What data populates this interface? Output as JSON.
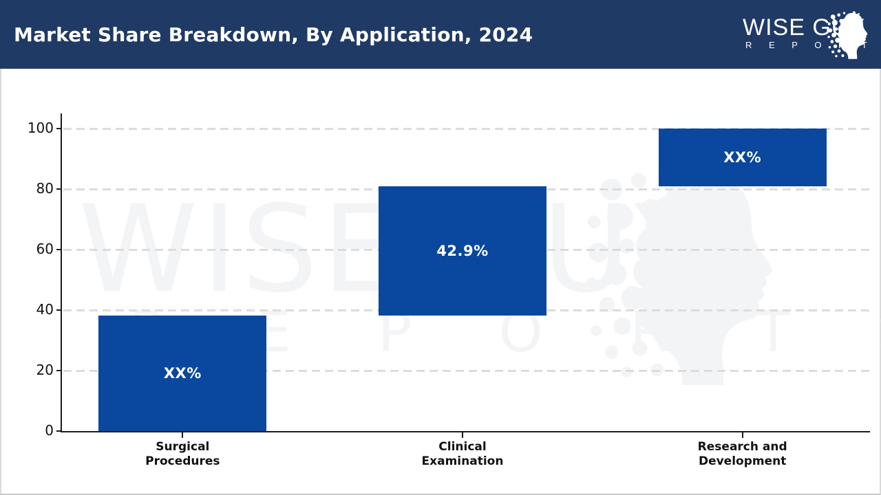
{
  "header": {
    "title": "Market Share Breakdown, By Application, 2024",
    "logo": {
      "line1": "WISE GUY",
      "line2": "R E P O R T S",
      "head_icon": "dotted-face-profile"
    },
    "bg_color": "#203a66"
  },
  "watermark": {
    "line1": "WISE GUY",
    "line2": "R E P O R T S",
    "head_icon": "dotted-face-profile",
    "color": "#f3f4f6"
  },
  "chart_data": {
    "type": "bar",
    "subtype": "waterfall-floating-segments",
    "title": "Market Share Breakdown, By Application, 2024",
    "categories": [
      "Surgical Procedures",
      "Clinical Examination",
      "Research and Development"
    ],
    "category_lines": [
      [
        "Surgical",
        "Procedures"
      ],
      [
        "Clinical",
        "Examination"
      ],
      [
        "Research and",
        "Development"
      ]
    ],
    "bars": [
      {
        "start": 0,
        "end": 38.1,
        "value_label": "XX%"
      },
      {
        "start": 38.1,
        "end": 81.0,
        "value_label": "42.9%"
      },
      {
        "start": 81.0,
        "end": 100,
        "value_label": "XX%"
      }
    ],
    "bar_color": "#0a479f",
    "value_label_color": "#ffffff",
    "yticks": [
      0,
      20,
      40,
      60,
      80,
      100
    ],
    "ylim": [
      0,
      105
    ],
    "xlabel": "",
    "ylabel": "",
    "grid": "horizontal dashed",
    "gridline_color": "#dcdcdc",
    "legend": "none"
  }
}
